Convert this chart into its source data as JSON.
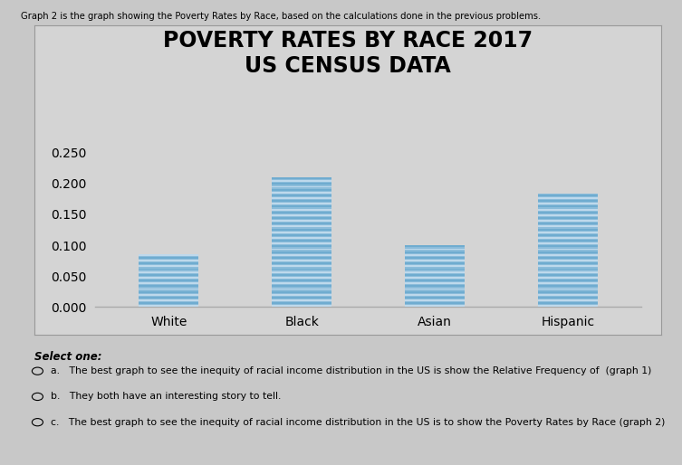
{
  "title_line1": "POVERTY RATES BY RACE 2017",
  "title_line2": "US CENSUS DATA",
  "categories": [
    "White",
    "Black",
    "Asian",
    "Hispanic"
  ],
  "values": [
    0.085,
    0.21,
    0.1,
    0.183
  ],
  "bar_color_base": "#8bbcda",
  "bar_stripe_light": "#c8dff0",
  "bar_stripe_dark": "#6aaacf",
  "ylim": [
    0,
    0.275
  ],
  "yticks": [
    0.0,
    0.05,
    0.1,
    0.15,
    0.2,
    0.25
  ],
  "ytick_labels": [
    "0.000",
    "0.050",
    "0.100",
    "0.150",
    "0.200",
    "0.250"
  ],
  "outer_bg_color": "#c8c8c8",
  "chart_box_color": "#d4d4d4",
  "title_fontsize": 17,
  "tick_fontsize": 10,
  "subtitle_text": "Graph 2 is the graph showing the Poverty Rates by Race, based on the calculations done in the previous problems.",
  "bar_width": 0.45,
  "bottom_text_select": "Select one:",
  "option_a": "a.   The best graph to see the inequity of racial income distribution in the US is show the Relative Frequency of  (graph 1)",
  "option_b": "b.   They both have an interesting story to tell.",
  "option_c": "c.   The best graph to see the inequity of racial income distribution in the US is to show the Poverty Rates by Race (graph 2)"
}
